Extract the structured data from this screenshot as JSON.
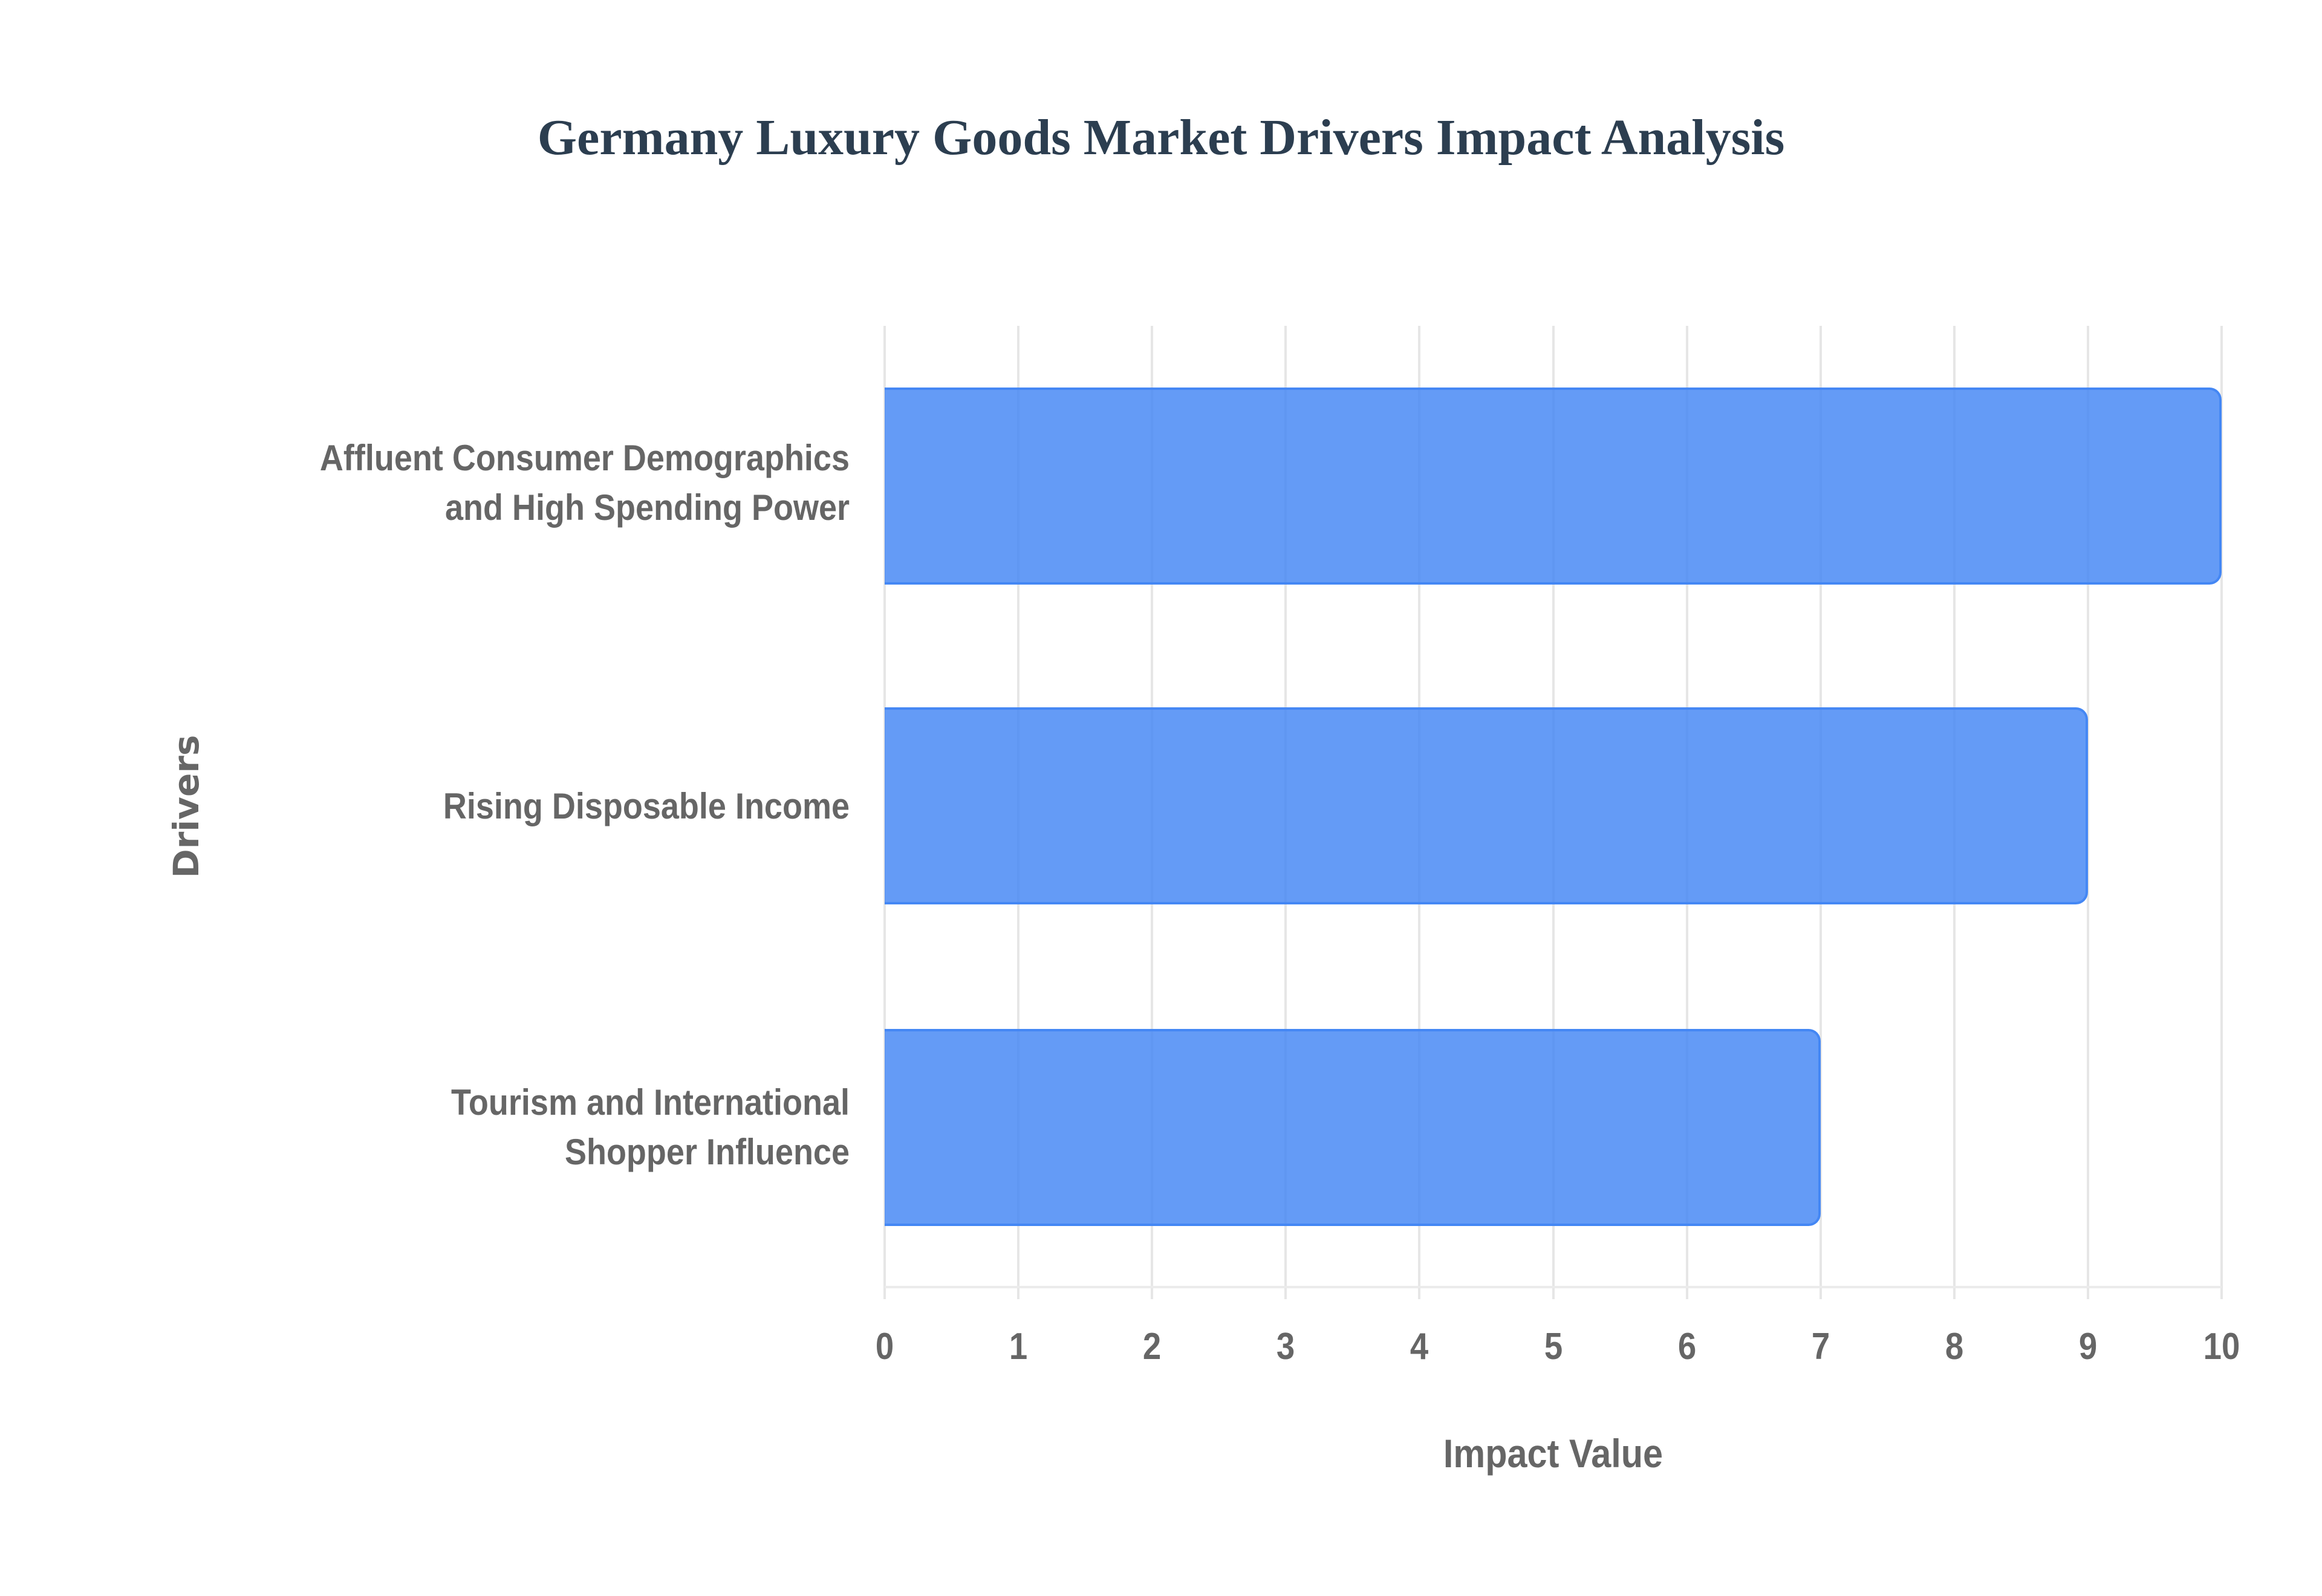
{
  "chart_data": {
    "type": "bar",
    "orientation": "horizontal",
    "title": "Germany Luxury Goods Market Drivers Impact Analysis",
    "xlabel": "Impact Value",
    "ylabel": "Drivers",
    "categories": [
      "Affluent Consumer Demographics and High Spending Power",
      "Rising Disposable Income",
      "Tourism and International Shopper Influence"
    ],
    "category_lines": [
      [
        "Affluent Consumer Demographics",
        "and High Spending Power"
      ],
      [
        "Rising Disposable Income"
      ],
      [
        "Tourism and International",
        "Shopper Influence"
      ]
    ],
    "series": [
      {
        "name": "Impact Value",
        "values": [
          10,
          9,
          7
        ],
        "color": "#6399f5"
      }
    ],
    "xlim": [
      0,
      10
    ],
    "xticks": [
      "0",
      "1",
      "2",
      "3",
      "4",
      "5",
      "6",
      "7",
      "8",
      "9",
      "10"
    ],
    "grid": true,
    "legend": null
  },
  "colors": {
    "title": "#2c3e50",
    "bar_fill": "#6399f5",
    "bar_border": "#4285f4",
    "axis_text": "#666666",
    "gridline": "#e6e6e6"
  }
}
